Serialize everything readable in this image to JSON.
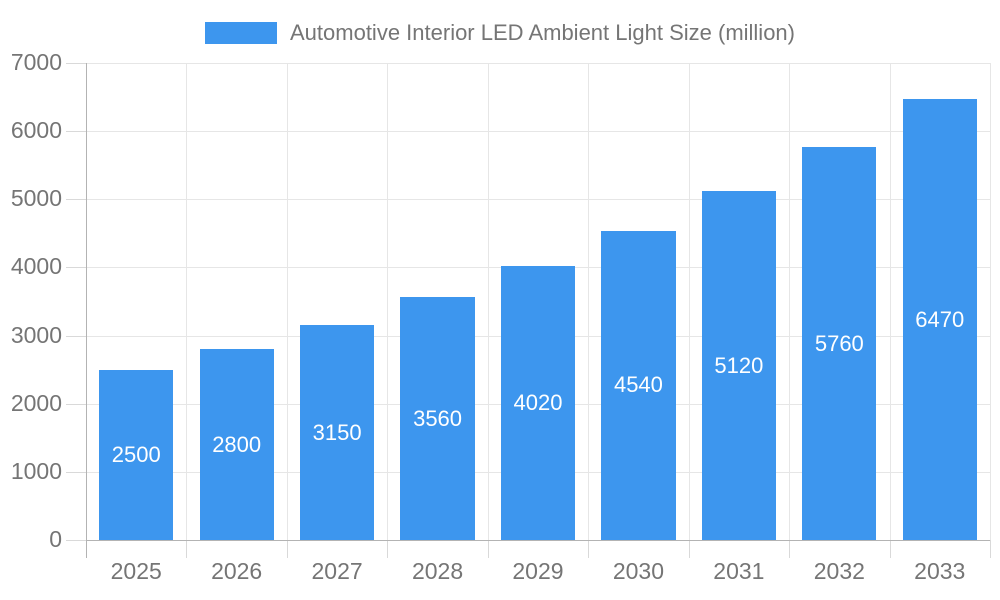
{
  "chart_data": {
    "type": "bar",
    "title": "Automotive Interior LED Ambient Light Size (million)",
    "categories": [
      "2025",
      "2026",
      "2027",
      "2028",
      "2029",
      "2030",
      "2031",
      "2032",
      "2033"
    ],
    "values": [
      2500,
      2800,
      3150,
      3560,
      4020,
      4540,
      5120,
      5760,
      6470
    ],
    "xlabel": "",
    "ylabel": "",
    "ylim": [
      0,
      7000
    ],
    "y_ticks": [
      0,
      1000,
      2000,
      3000,
      4000,
      5000,
      6000,
      7000
    ],
    "grid": true,
    "legend_position": "top",
    "value_labels": "inside-center",
    "colors": {
      "bar": "#3D96EE",
      "value_text": "#ffffff",
      "axis_text": "#757575",
      "gridline": "#e6e6e6",
      "tick": "#d9d9d9",
      "axis_line": "#b3b3b3",
      "background": "#ffffff"
    }
  }
}
